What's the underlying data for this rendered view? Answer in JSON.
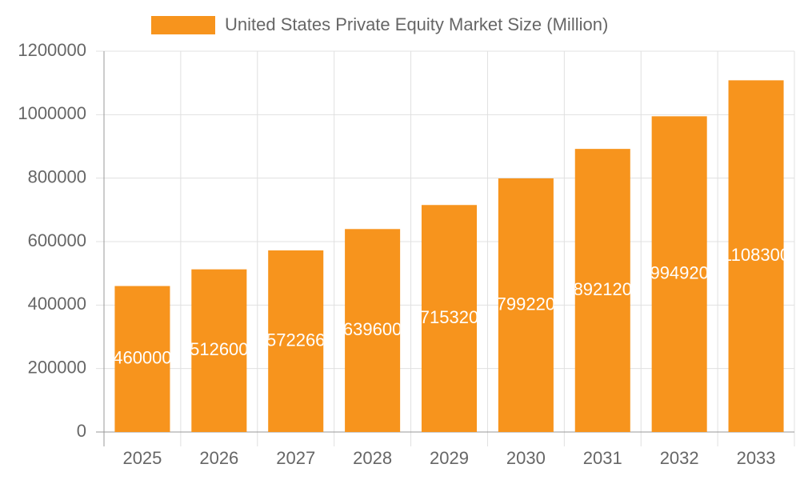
{
  "chart_data": {
    "type": "bar",
    "series": [
      {
        "name": "United States Private Equity Market Size (Million)",
        "color": "#f7941d",
        "values": [
          460000,
          512600,
          572266,
          639600,
          715320,
          799220,
          892120,
          994920,
          1108300
        ]
      }
    ],
    "categories": [
      "2025",
      "2026",
      "2027",
      "2028",
      "2029",
      "2030",
      "2031",
      "2032",
      "2033"
    ],
    "ylim": [
      0,
      1200000
    ],
    "yticks": [
      0,
      200000,
      400000,
      600000,
      800000,
      1000000,
      1200000
    ],
    "grid": true,
    "legend": "top"
  }
}
